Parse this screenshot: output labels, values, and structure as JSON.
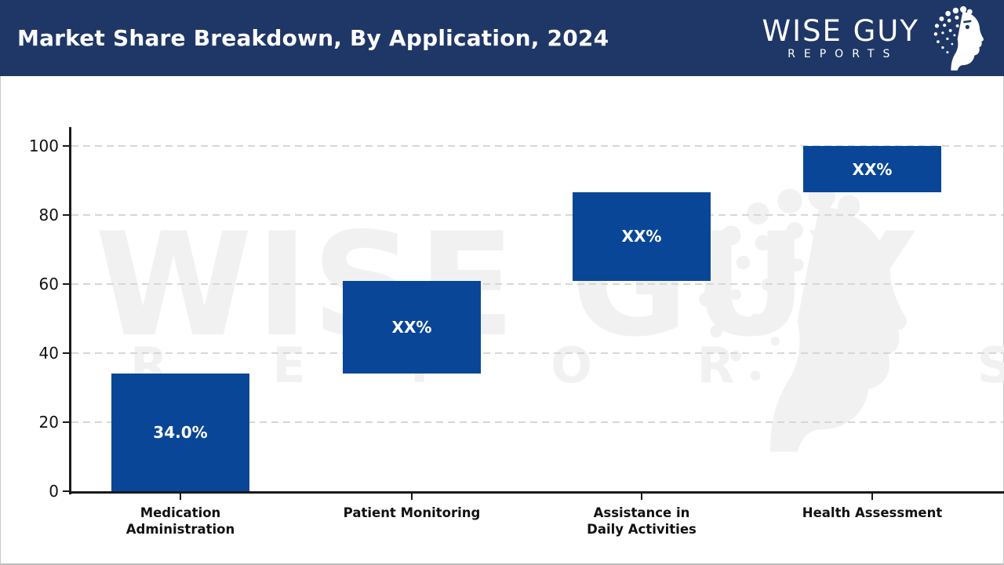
{
  "header": {
    "title": "Market Share Breakdown, By Application, 2024",
    "logo": {
      "name_line": "WISE GUY",
      "sub_line": "REPORTS"
    }
  },
  "watermark": {
    "name_line": "WISE GUY",
    "sub_line": "R E P O R T S"
  },
  "colors": {
    "header_bg": "#1f3766",
    "bar": "#0a4697",
    "bar_label": "#ffffff",
    "grid": "#d7d7d7",
    "axis": "#1a1a1a",
    "watermark": "#f1f1f1"
  },
  "chart_data": {
    "type": "bar",
    "subtype": "waterfall",
    "title": "Market Share Breakdown, By Application, 2024",
    "categories": [
      "Medication\nAdministration",
      "Patient Monitoring",
      "Assistance in\nDaily Activities",
      "Health Assessment"
    ],
    "series": [
      {
        "name": "Market share (%)",
        "segments": [
          {
            "category": "Medication Administration",
            "from": 0,
            "to": 34,
            "label": "34.0%"
          },
          {
            "category": "Patient Monitoring",
            "from": 34,
            "to": 61,
            "label": "XX%"
          },
          {
            "category": "Assistance in Daily Activities",
            "from": 61,
            "to": 86.5,
            "label": "XX%"
          },
          {
            "category": "Health Assessment",
            "from": 86.5,
            "to": 100,
            "label": "XX%"
          }
        ]
      }
    ],
    "xlabel": "",
    "ylabel": "",
    "yticks": [
      0,
      20,
      40,
      60,
      80,
      100
    ],
    "ylim": [
      0,
      105
    ],
    "grid": "horizontal-dashed",
    "legend": "none"
  }
}
